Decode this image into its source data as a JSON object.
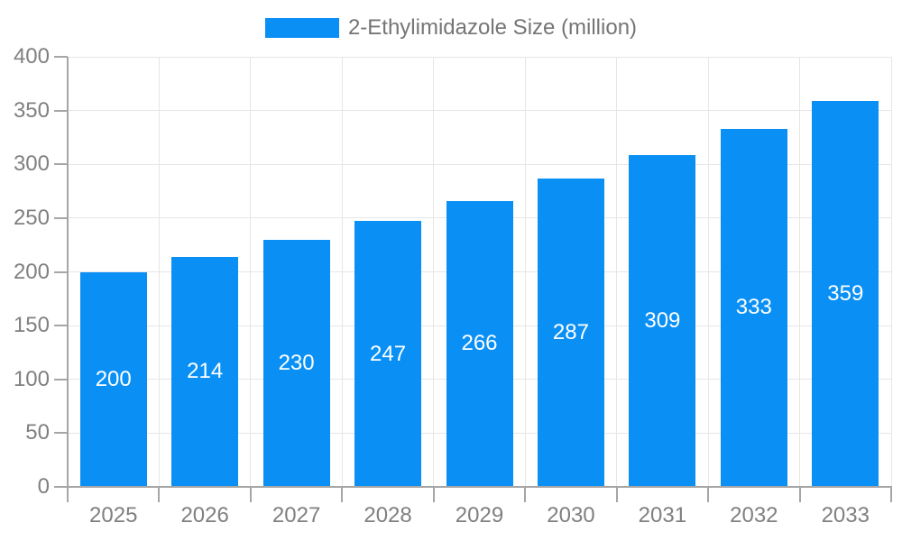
{
  "legend": {
    "label": "2-Ethylimidazole Size (million)",
    "position": "top-center"
  },
  "colors": {
    "bar": "#0a90f5",
    "axis_line": "#a6a6a6",
    "gridline": "#e6e6e6",
    "tick_label": "#808080",
    "value_label": "#ffffff",
    "legend_text": "#757575",
    "background": "#ffffff"
  },
  "chart_data": {
    "type": "bar",
    "title": "2-Ethylimidazole Size (million)",
    "categories": [
      "2025",
      "2026",
      "2027",
      "2028",
      "2029",
      "2030",
      "2031",
      "2032",
      "2033"
    ],
    "values": [
      200,
      214,
      230,
      247,
      266,
      287,
      309,
      333,
      359
    ],
    "series": [
      {
        "name": "2-Ethylimidazole Size (million)",
        "values": [
          200,
          214,
          230,
          247,
          266,
          287,
          309,
          333,
          359
        ]
      }
    ],
    "xlabel": "",
    "ylabel": "",
    "ylim": [
      0,
      400
    ],
    "ytick_step": 50,
    "yticks": [
      0,
      50,
      100,
      150,
      200,
      250,
      300,
      350,
      400
    ],
    "grid": true,
    "legend_position": "top-center",
    "value_label_position": "inside-center"
  }
}
